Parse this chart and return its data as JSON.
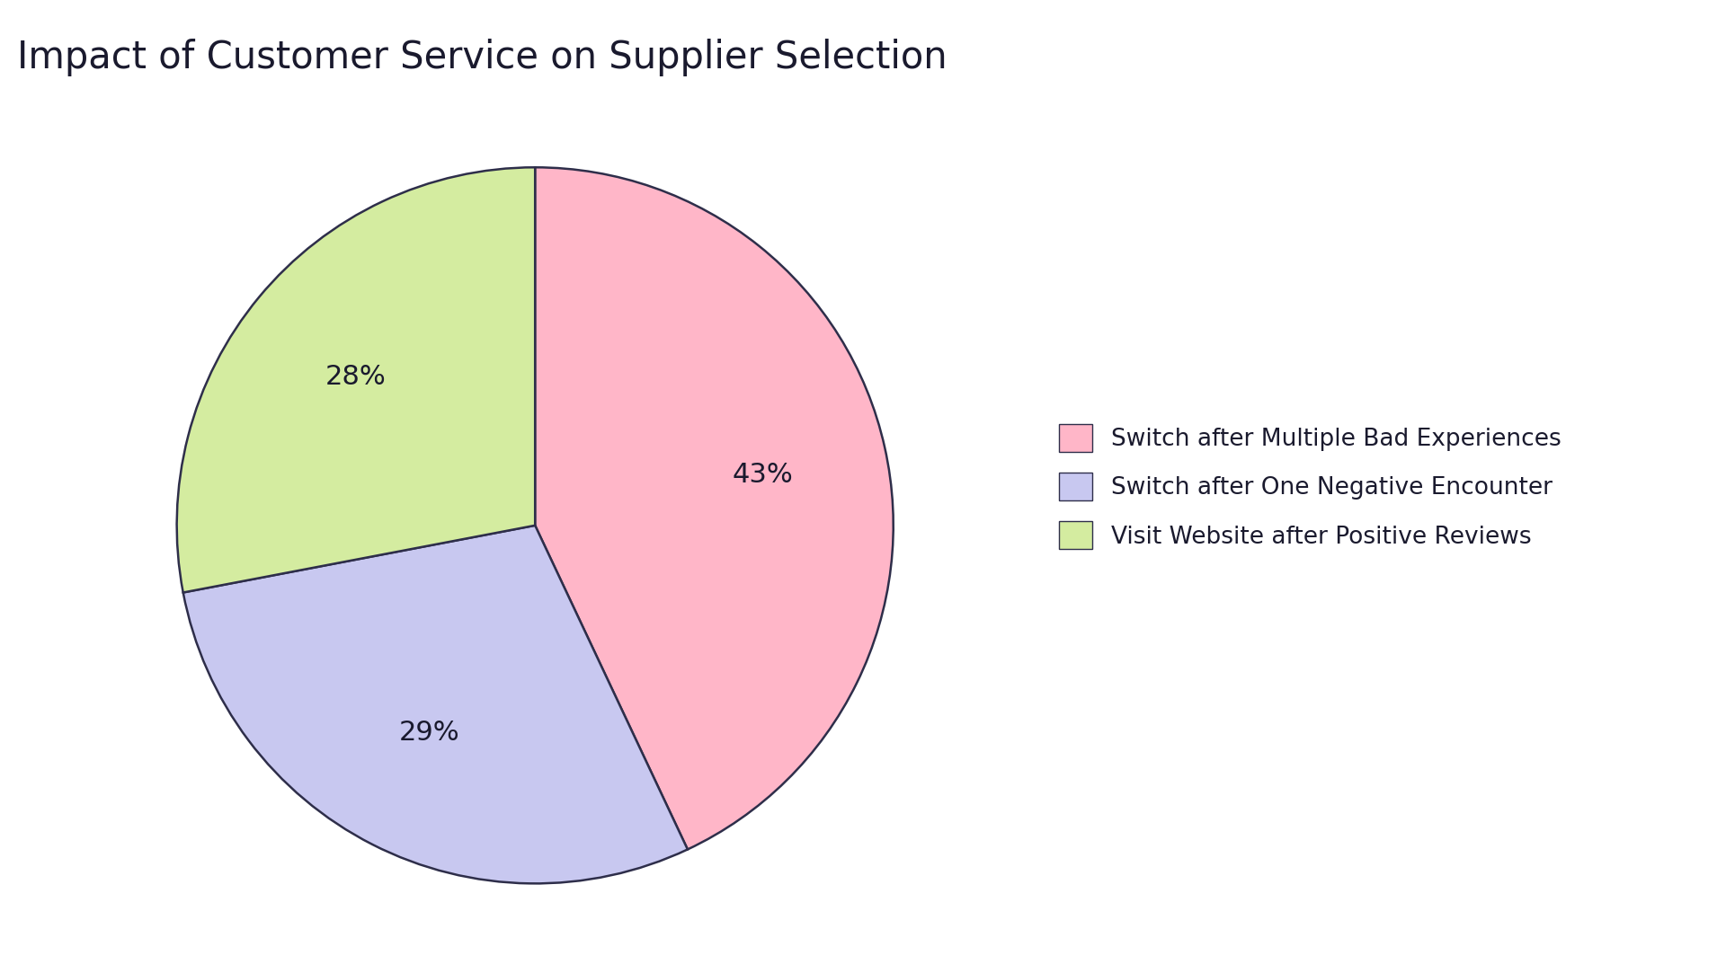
{
  "title": "Impact of Customer Service on Supplier Selection",
  "slices": [
    43,
    29,
    28
  ],
  "labels": [
    "Switch after Multiple Bad Experiences",
    "Switch after One Negative Encounter",
    "Visit Website after Positive Reviews"
  ],
  "colors": [
    "#FFB6C8",
    "#C8C8F0",
    "#D4ECA0"
  ],
  "edge_color": "#2e2e4a",
  "edge_width": 1.8,
  "startangle": 90,
  "title_fontsize": 30,
  "pct_fontsize": 22,
  "legend_fontsize": 19,
  "background_color": "#ffffff",
  "text_color": "#1a1a2e"
}
